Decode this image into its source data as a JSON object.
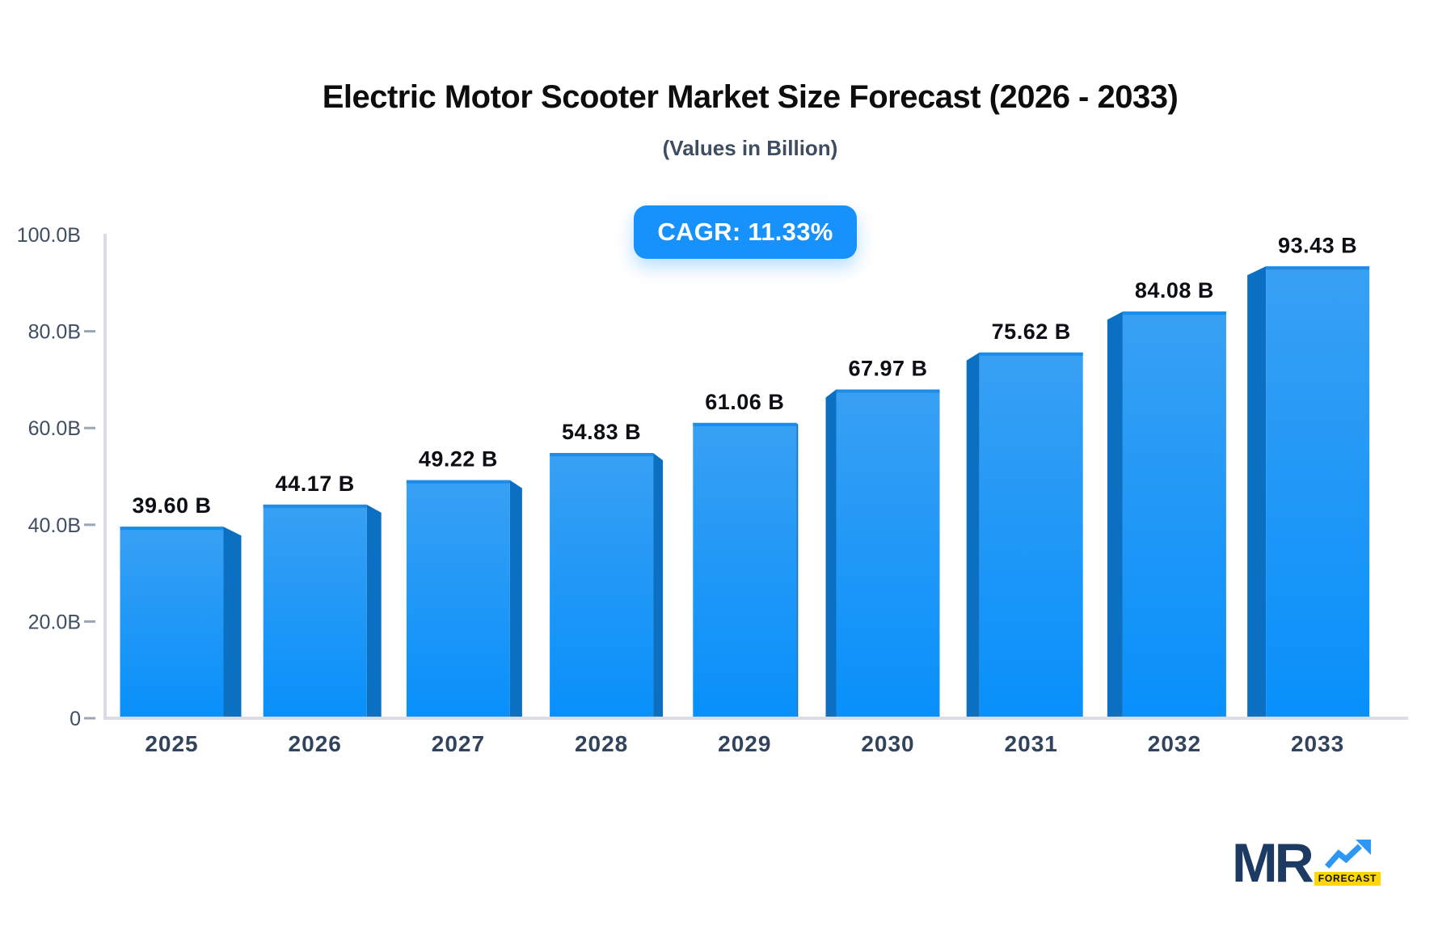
{
  "header": {
    "title": "Electric Motor Scooter Market Size Forecast (2026 - 2033)",
    "subtitle": "(Values in Billion)"
  },
  "cagr_badge": {
    "label": "CAGR: 11.33%",
    "background": "#1791fc",
    "text_color": "#ffffff"
  },
  "chart_data": {
    "type": "bar",
    "title": "Electric Motor Scooter Market Size Forecast (2026 - 2033)",
    "subtitle": "(Values in Billion)",
    "annotation": "CAGR: 11.33%",
    "categories": [
      "2025",
      "2026",
      "2027",
      "2028",
      "2029",
      "2030",
      "2031",
      "2032",
      "2033"
    ],
    "values": [
      39.6,
      44.17,
      49.22,
      54.83,
      61.06,
      67.97,
      75.62,
      84.08,
      93.43
    ],
    "bar_labels": [
      "39.60 B",
      "44.17 B",
      "49.22 B",
      "54.83 B",
      "61.06 B",
      "67.97 B",
      "75.62 B",
      "84.08 B",
      "93.43 B"
    ],
    "yticks": [
      {
        "label": "100.0B",
        "value": 100
      },
      {
        "label": "80.0B",
        "value": 80
      },
      {
        "label": "60.0B",
        "value": 60
      },
      {
        "label": "40.0B",
        "value": 40
      },
      {
        "label": "20.0B",
        "value": 20
      },
      {
        "label": "0",
        "value": 0
      }
    ],
    "ylim": [
      0,
      100
    ],
    "xlabel": "",
    "ylabel": "",
    "grid": false,
    "legend": "none",
    "colors": {
      "bar_front_top": "#38a0f3",
      "bar_front_bottom": "#0890fb",
      "bar_side": "#0c70c2",
      "bar_top_edge": "#1d8ce9",
      "axis_line": "#d9dce2",
      "tick_mark": "#9aa6b4",
      "tick_label": "#3f4e63",
      "year_label": "#32435c",
      "value_label": "#0c0f14"
    }
  },
  "logo": {
    "text": "MR",
    "subtext": "FORECAST",
    "navy": "#1d3a63",
    "arrow_blue": "#2e96f3",
    "yellow": "#ffd60a"
  }
}
